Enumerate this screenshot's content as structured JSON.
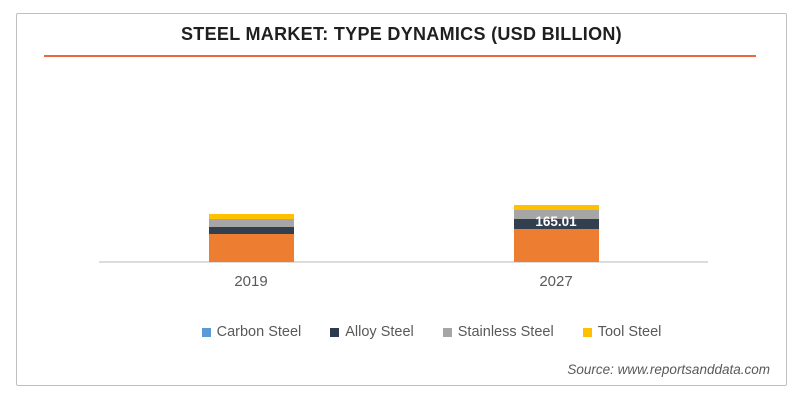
{
  "chart": {
    "title": "STEEL MARKET: TYPE DYNAMICS (USD BILLION)",
    "source": "Source: www.reportsanddata.com"
  },
  "chart_data": {
    "type": "bar",
    "stacked": true,
    "title": "STEEL MARKET: TYPE DYNAMICS (USD BILLION)",
    "categories": [
      "2019",
      "2027"
    ],
    "series": [
      {
        "name": "Carbon Steel",
        "values": [
          140,
          165.01
        ],
        "bar_color": "#ED7D31",
        "legend_color": "#5B9BD5"
      },
      {
        "name": "Alloy Steel",
        "values": [
          35,
          50
        ],
        "bar_color": "#323F4F",
        "legend_color": "#2E3B4E"
      },
      {
        "name": "Stainless Steel",
        "values": [
          40,
          45
        ],
        "bar_color": "#A6A6A6",
        "legend_color": "#A6A6A6"
      },
      {
        "name": "Tool Steel",
        "values": [
          25,
          25
        ],
        "bar_color": "#FFC000",
        "legend_color": "#FFC000"
      }
    ],
    "data_labels": [
      {
        "category": "2027",
        "series": "Carbon Steel",
        "text": "165.01",
        "color": "#FFFFFF"
      }
    ],
    "ylim": [
      0,
      305
    ],
    "xlabel": "",
    "ylabel": "",
    "grid": false,
    "legend_position": "bottom",
    "accent_color": "#E8693C",
    "axis_color": "#DCDCDC",
    "text_color": "#595959"
  }
}
